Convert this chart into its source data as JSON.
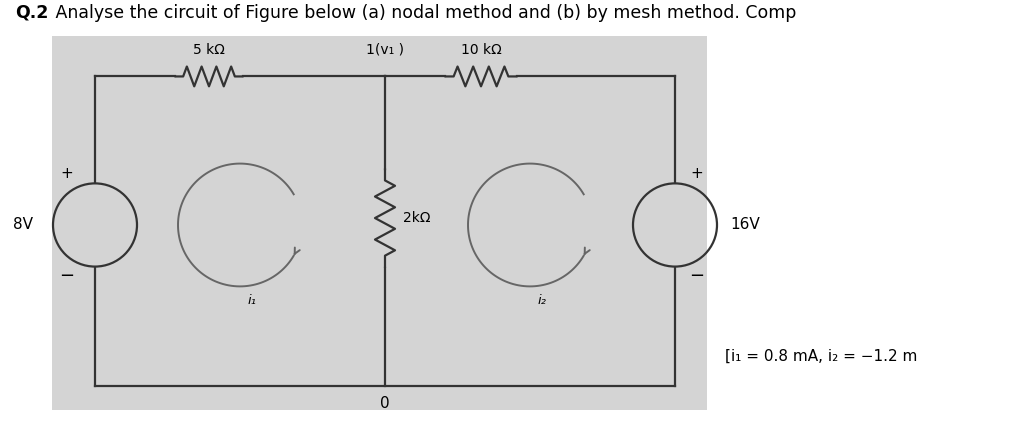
{
  "title_bold": "Q.2",
  "title_regular": " Analyse the circuit of Figure below (a) nodal method and (b) by mesh method. Comp",
  "bg_color": "#d4d4d4",
  "fig_bg": "#ffffff",
  "answer_text": "[i₁ = 0.8 mA, i₂ = −1.2 m",
  "label_5k": "5 kΩ",
  "label_10k": "10 kΩ",
  "label_2k": "2kΩ",
  "label_1v1": "1(v₁ )",
  "label_8v": "8V",
  "label_16v": "16V",
  "label_i1": "i₁",
  "label_i2": "i₂",
  "label_0": "0",
  "wire_color": "#333333",
  "arc_color": "#666666"
}
